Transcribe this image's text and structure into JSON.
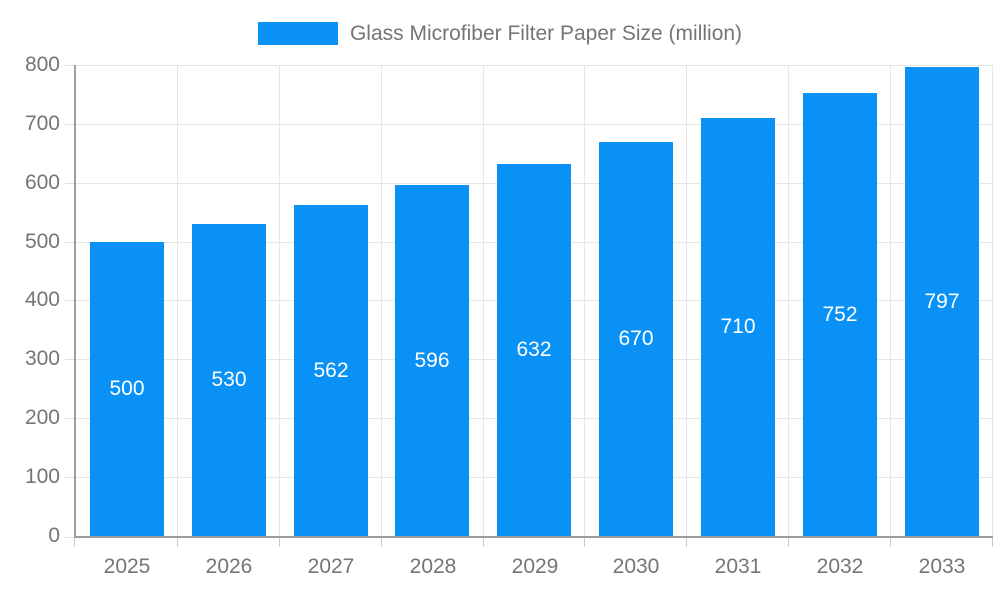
{
  "chart_data": {
    "type": "bar",
    "title": "Glass Microfiber Filter Paper Size (million)",
    "legend": [
      "Glass Microfiber Filter Paper Size (million)"
    ],
    "legend_position": "top-center",
    "categories": [
      "2025",
      "2026",
      "2027",
      "2028",
      "2029",
      "2030",
      "2031",
      "2032",
      "2033"
    ],
    "values": [
      500,
      530,
      562,
      596,
      632,
      670,
      710,
      752,
      797
    ],
    "xlabel": "",
    "ylabel": "",
    "ylim": [
      0,
      800
    ],
    "ytick_step": 100,
    "y_tick_labels": [
      "0",
      "100",
      "200",
      "300",
      "400",
      "500",
      "600",
      "700",
      "800"
    ],
    "grid": true,
    "value_labels_shown": true,
    "value_label_position": "center-of-bar",
    "colors": {
      "bar": "#0991f5",
      "axis": "#9e9e9e",
      "grid": "#e6e6e6",
      "tick": "#c9c9c9",
      "axis_text": "#757575",
      "value_text": "#ffffff",
      "background": "#ffffff"
    }
  }
}
